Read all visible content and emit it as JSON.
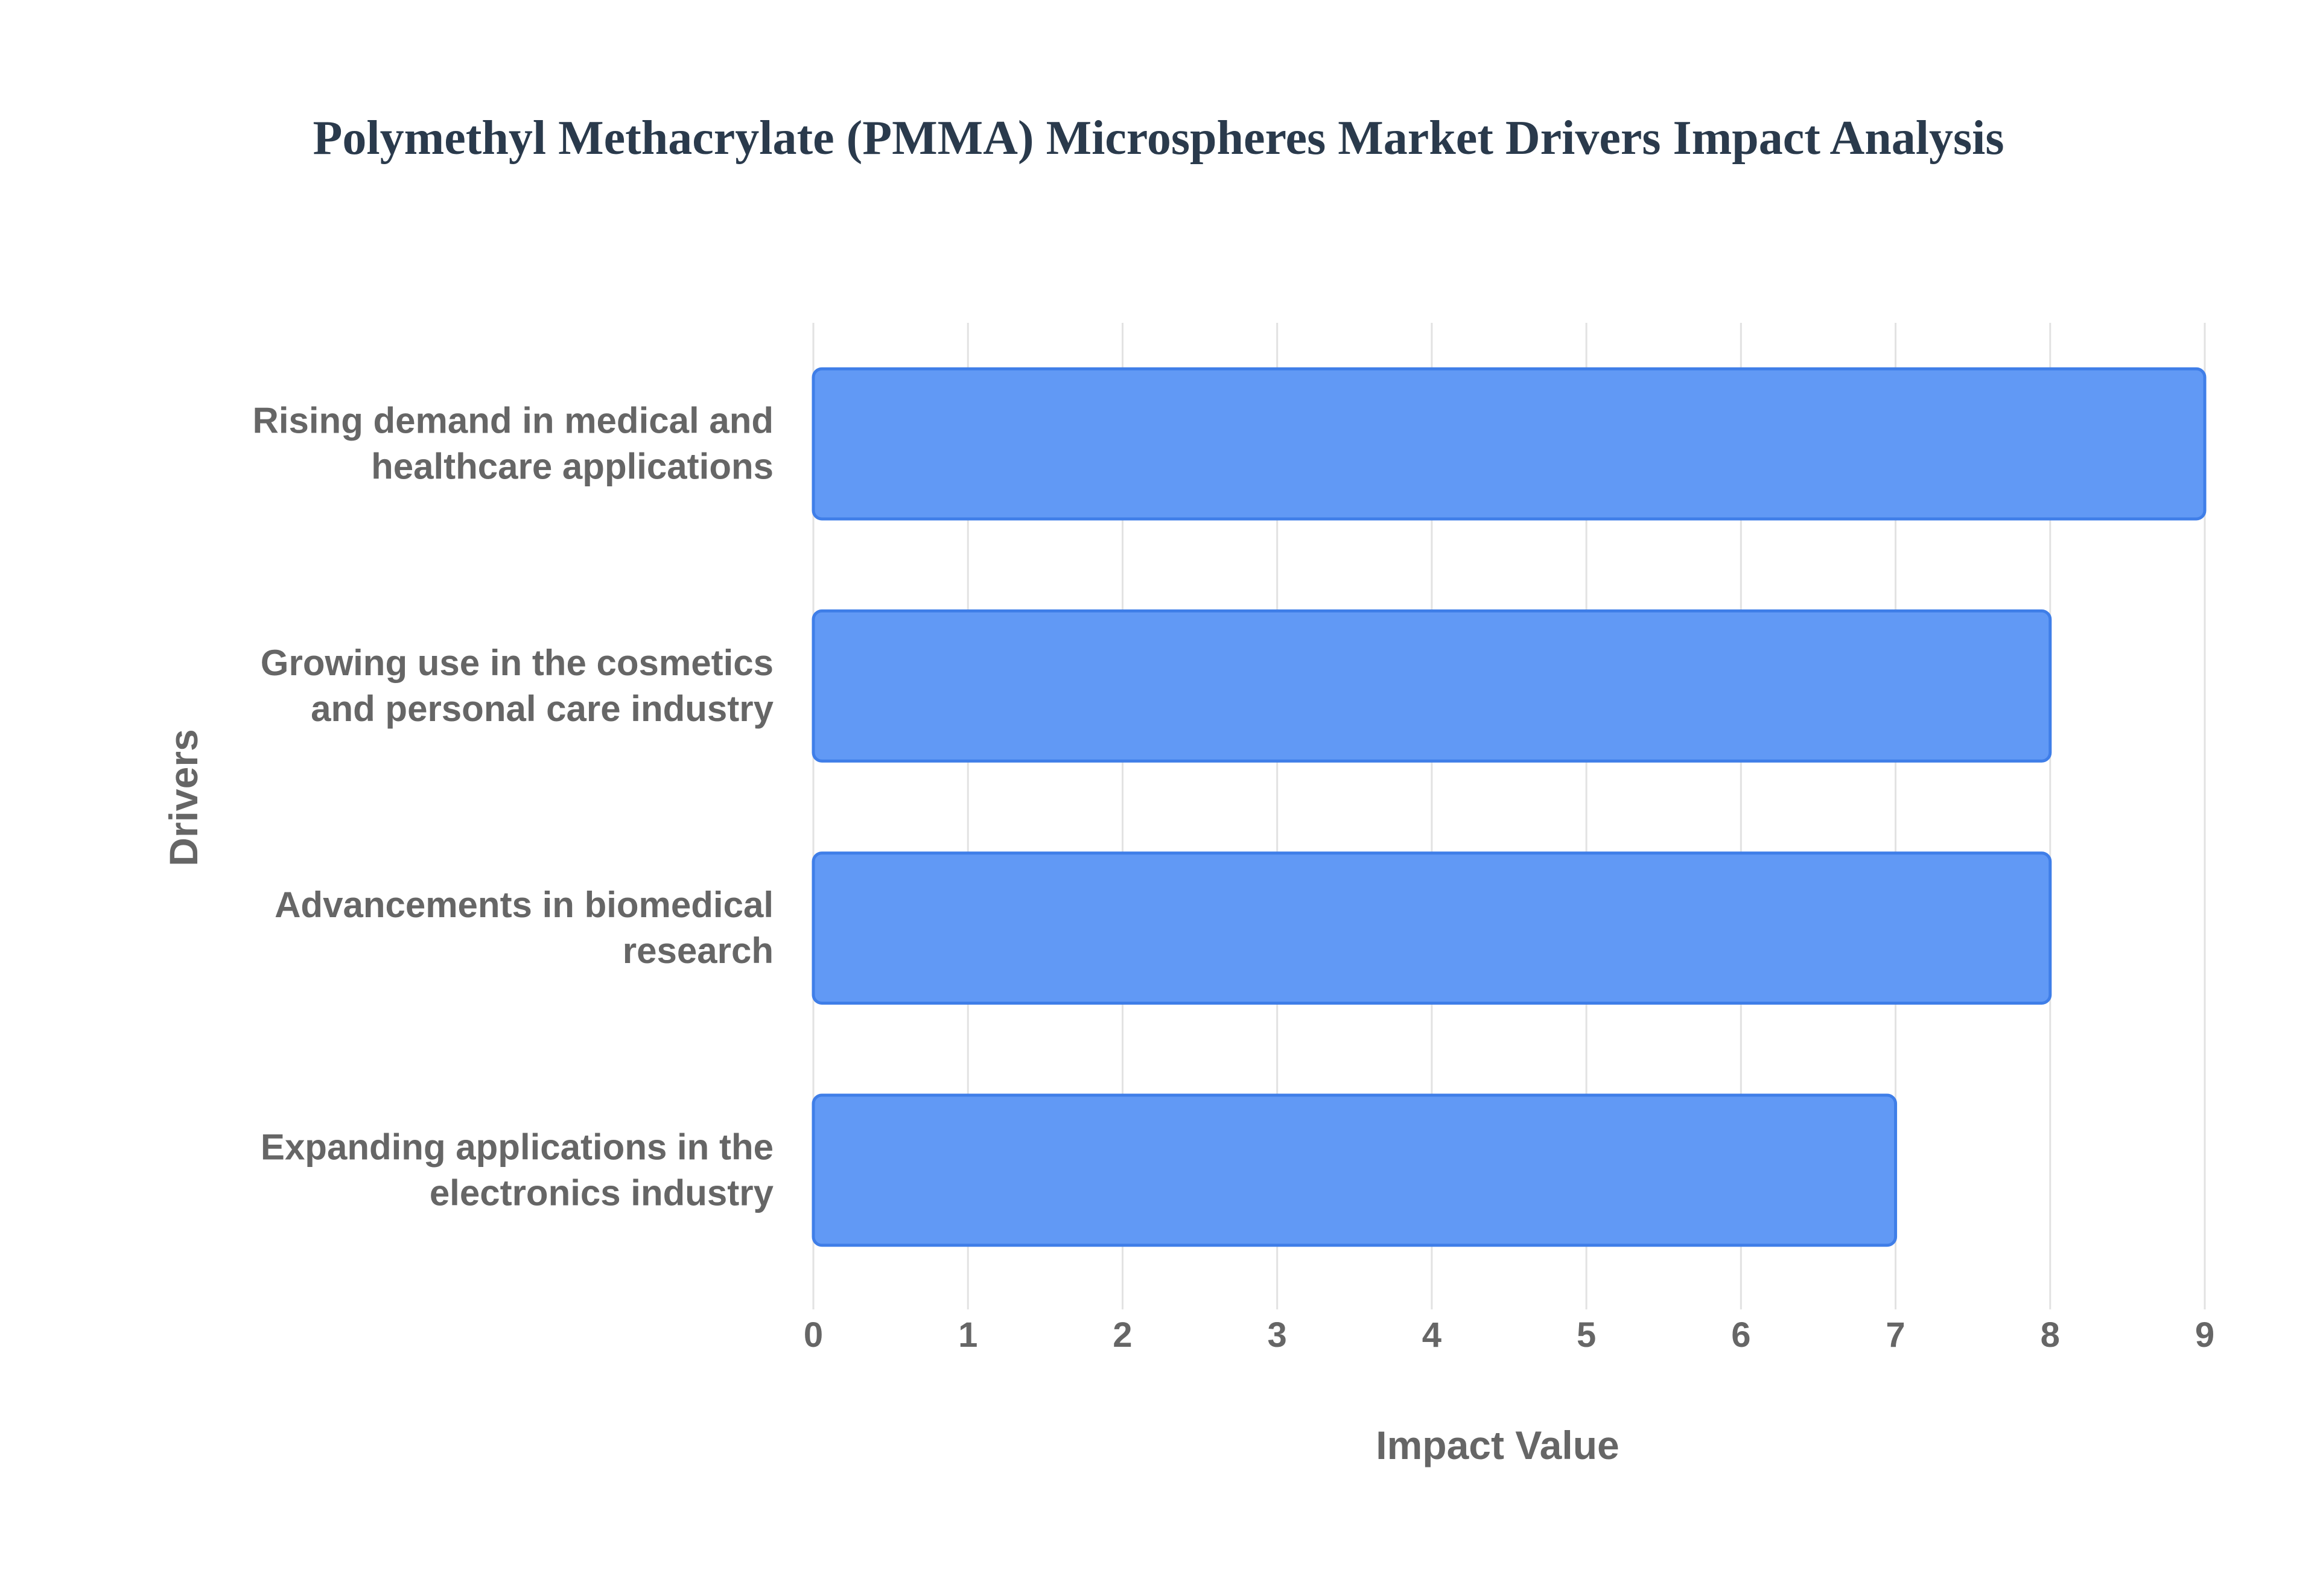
{
  "chart_data": {
    "type": "bar",
    "orientation": "horizontal",
    "title": "Polymethyl Methacrylate (PMMA) Microspheres Market Drivers Impact Analysis",
    "xlabel": "Impact Value",
    "ylabel": "Drivers",
    "categories": [
      [
        "Rising demand in medical and",
        "healthcare applications"
      ],
      [
        "Growing use in the cosmetics",
        "and personal care industry"
      ],
      [
        "Advancements in biomedical",
        "research"
      ],
      [
        "Expanding applications in the",
        "electronics industry"
      ]
    ],
    "values": [
      9,
      8,
      8,
      7
    ],
    "xlim": [
      0,
      9
    ],
    "xticks": [
      "0",
      "1",
      "2",
      "3",
      "4",
      "5",
      "6",
      "7",
      "8",
      "9"
    ],
    "grid": true,
    "legend": "none",
    "colors": {
      "bar_fill": "#6199f5",
      "bar_stroke": "#3f7ee8",
      "grid": "#e2e2e2",
      "title": "#2a3a4c",
      "labels": "#666666"
    }
  }
}
